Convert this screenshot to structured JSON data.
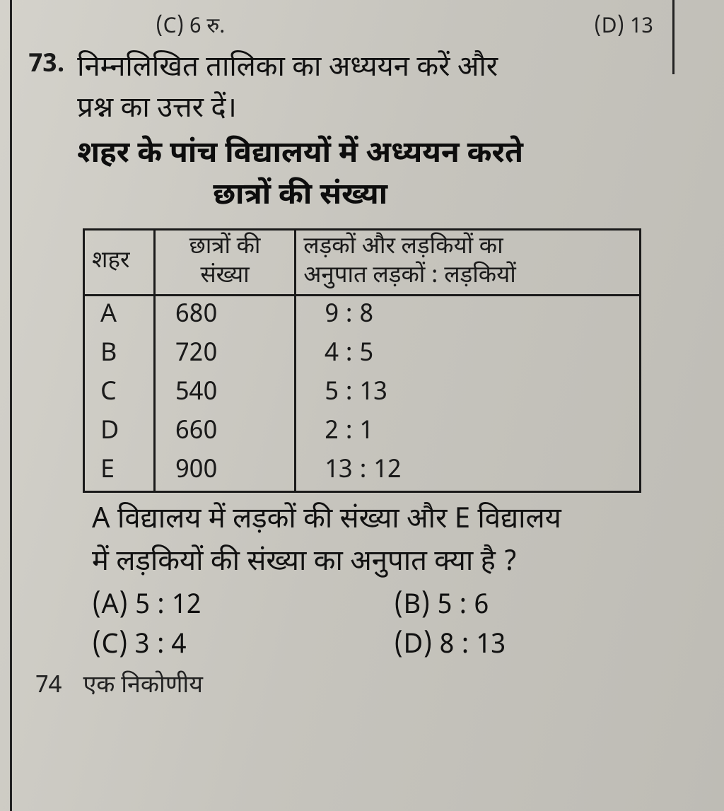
{
  "fragments": {
    "top_left": "(C) 6 रु.",
    "top_right": "(D) 13",
    "bottom_left": "74",
    "bottom_right": "एक निकोणीय"
  },
  "question": {
    "number": "73.",
    "text_line1": "निम्नलिखित तालिका का अध्ययन करें और",
    "text_line2": "प्रश्न का उत्तर दें।",
    "heading_line1": "शहर के पांच विद्यालयों में अध्ययन करते",
    "heading_line2": "छात्रों की संख्या"
  },
  "table": {
    "headers": {
      "col1": "शहर",
      "col2_line1": "छात्रों की",
      "col2_line2": "संख्या",
      "col3_line1": "लड़कों और लड़कियों का",
      "col3_line2": "अनुपात लड़कों : लड़कियों"
    },
    "rows": [
      {
        "city": "A",
        "students": "680",
        "ratio": "9 : 8"
      },
      {
        "city": "B",
        "students": "720",
        "ratio": "4 : 5"
      },
      {
        "city": "C",
        "students": "540",
        "ratio": "5 : 13"
      },
      {
        "city": "D",
        "students": "660",
        "ratio": "2 : 1"
      },
      {
        "city": "E",
        "students": "900",
        "ratio": "13 : 12"
      }
    ],
    "border_color": "#1a1a1a",
    "background_color": "transparent",
    "font_size": 34
  },
  "after_table": {
    "line1": "A विद्यालय में लड़कों की संख्या और E विद्यालय",
    "line2": "में लड़कियों की संख्या का अनुपात क्या है ?"
  },
  "options": {
    "a": "(A) 5 : 12",
    "b": "(B) 5 : 6",
    "c": "(C) 3 : 4",
    "d": "(D) 8 : 13"
  },
  "colors": {
    "text": "#1a1a1a",
    "background": "#c8c6c0"
  }
}
